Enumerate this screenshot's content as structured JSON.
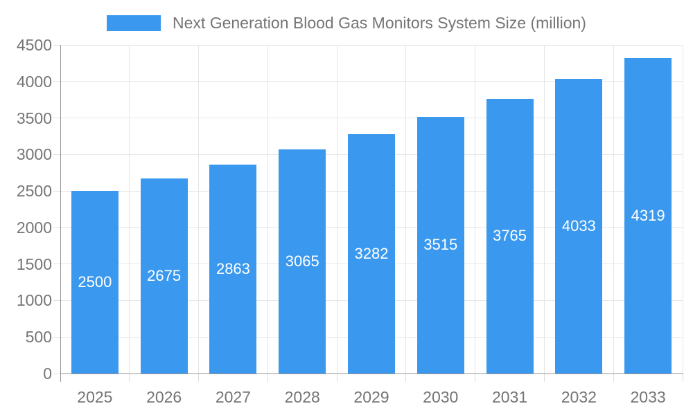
{
  "chart_data": {
    "type": "bar",
    "title": "Next Generation Blood Gas Monitors System Size (million)",
    "categories": [
      "2025",
      "2026",
      "2027",
      "2028",
      "2029",
      "2030",
      "2031",
      "2032",
      "2033"
    ],
    "values": [
      2500,
      2675,
      2863,
      3065,
      3282,
      3515,
      3765,
      4033,
      4319
    ],
    "yticks": [
      "0",
      "500",
      "1000",
      "1500",
      "2000",
      "2500",
      "3000",
      "3500",
      "4000",
      "4500"
    ],
    "ylim": [
      0,
      4500
    ],
    "xlabel": "",
    "ylabel": "",
    "grid": true,
    "legend_position": "top-center",
    "bar_color": "#3A99EE",
    "value_label_color": "#FFFFFF",
    "axis_text_color": "#757575",
    "gridline_color": "#E6E6E6",
    "axis_line_color": "#949494",
    "background_color": "#FFFFFF"
  }
}
